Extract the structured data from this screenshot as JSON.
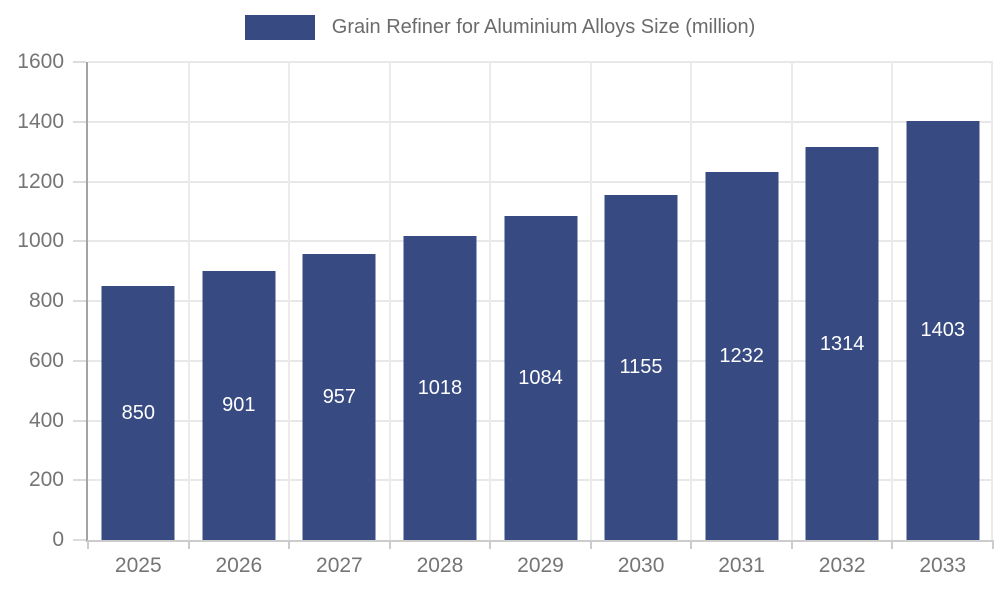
{
  "chart_data": {
    "type": "bar",
    "title": "Grain Refiner for Aluminium Alloys Size (million)",
    "categories": [
      "2025",
      "2026",
      "2027",
      "2028",
      "2029",
      "2030",
      "2031",
      "2032",
      "2033"
    ],
    "values": [
      850,
      901,
      957,
      1018,
      1084,
      1155,
      1232,
      1314,
      1403
    ],
    "xlabel": "",
    "ylabel": "",
    "ylim": [
      0,
      1600
    ],
    "yticks": [
      0,
      200,
      400,
      600,
      800,
      1000,
      1200,
      1400,
      1600
    ],
    "grid": true,
    "legend_position": "top",
    "bar_color": "#374a82",
    "value_label_color": "#ffffff",
    "axis_text_color": "#757575"
  }
}
